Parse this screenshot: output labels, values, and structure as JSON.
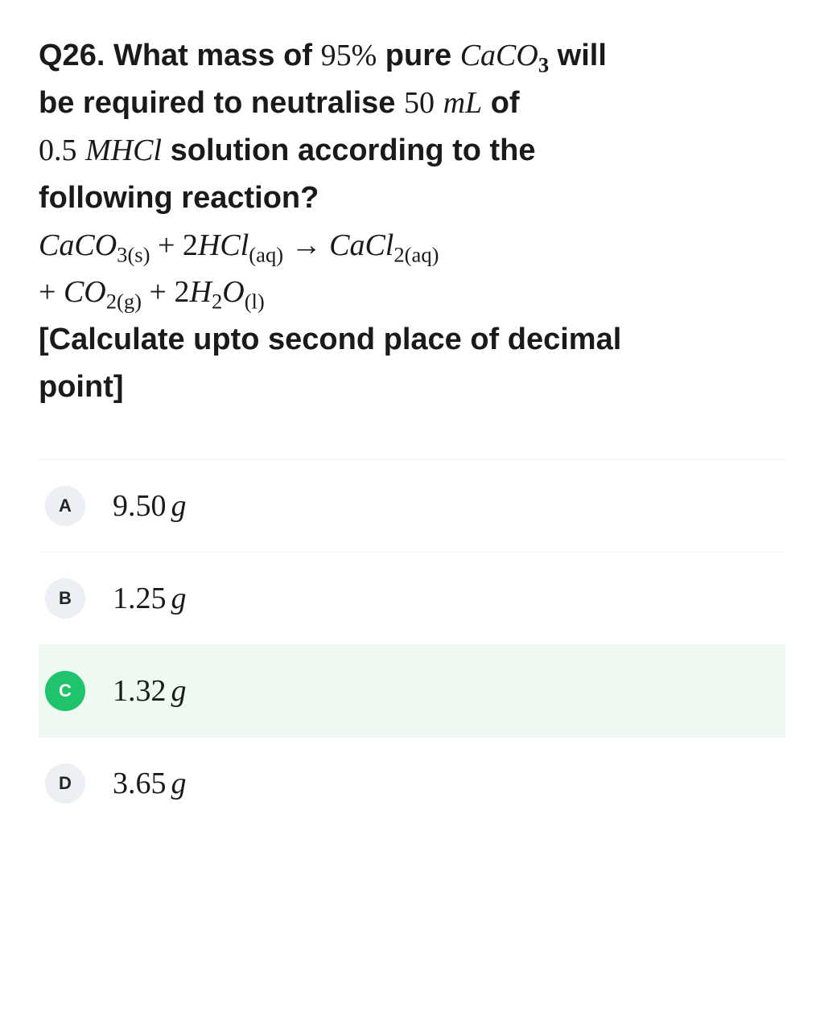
{
  "question": {
    "label": "Q26.",
    "line1_a": "What mass of ",
    "percent": "95%",
    "line1_b": " pure ",
    "compound1": "CaCO",
    "compound1_sub": "3",
    "line1_c": " will",
    "line2_a": "be required to neutralise ",
    "vol_num": "50",
    "vol_unit": "mL",
    "line2_b": " of",
    "line3_a": "0.5",
    "line3_unit": "M",
    "line3_form": "HCl",
    "line3_b": " solution according to the",
    "line4": "following reaction?",
    "eq1_a": "CaCO",
    "eq1_a_sub": "3(s)",
    "eq1_plus1": " + 2",
    "eq1_b": "HCl",
    "eq1_b_sub": "(aq)",
    "eq1_arrow": " → ",
    "eq1_c": "CaCl",
    "eq1_c_sub": "2(aq)",
    "eq2_plus1": "+ ",
    "eq2_a": "CO",
    "eq2_a_sub": "2(g)",
    "eq2_plus2": " + 2",
    "eq2_b": "H",
    "eq2_b_sub1": "2",
    "eq2_c": "O",
    "eq2_c_sub": "(l)",
    "note1": "[Calculate upto second place of decimal",
    "note2": "point]"
  },
  "options": [
    {
      "letter": "A",
      "value": "9.50",
      "unit": "g",
      "selected": false
    },
    {
      "letter": "B",
      "value": "1.25",
      "unit": "g",
      "selected": false
    },
    {
      "letter": "C",
      "value": "1.32",
      "unit": "g",
      "selected": true
    },
    {
      "letter": "D",
      "value": "3.65",
      "unit": "g",
      "selected": false
    }
  ],
  "colors": {
    "text": "#1a1a1a",
    "badge_bg": "#eceff3",
    "badge_selected_bg": "#1fc36b",
    "selected_row_bg": "#edf9f1",
    "divider": "#f0f0f0",
    "background": "#ffffff"
  }
}
